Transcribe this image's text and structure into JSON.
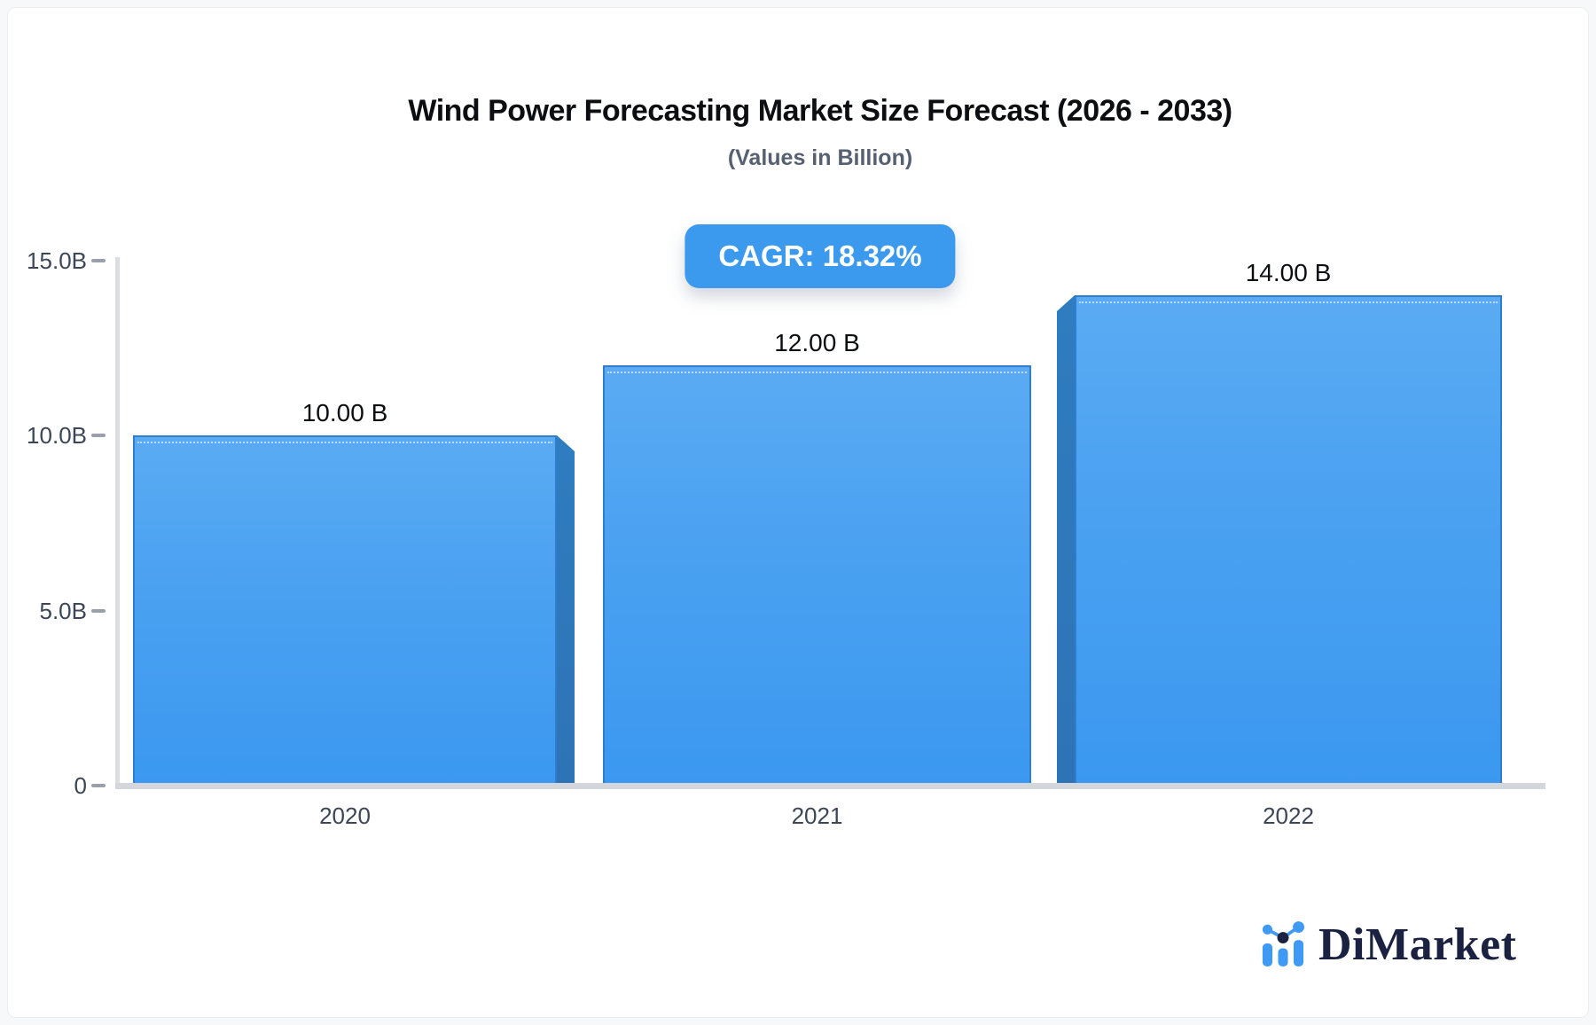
{
  "header": {
    "title": "Wind Power Forecasting Market Size Forecast (2026 - 2033)",
    "subtitle": "(Values in Billion)",
    "cagr_label": "CAGR: 18.32%"
  },
  "brand": {
    "name": "DiMarket",
    "icon": "bar-line-chart-icon"
  },
  "colors": {
    "accent_blue": "#3b99ee",
    "bar_gradient_top": "#5aabf3",
    "bar_gradient_bottom": "#3b98f0",
    "bar_border": "#2e7ecd",
    "bar_side_shadow": "#2d74b6",
    "axis_gray": "#d3d6db",
    "tick_text": "#3c4656",
    "title_text": "#0c0e12",
    "subtitle_text": "#566070",
    "logo_navy": "#1a2141",
    "logo_blue": "#3f9af5"
  },
  "chart_data": {
    "type": "bar",
    "title": "Wind Power Forecasting Market Size Forecast (2026 - 2033)",
    "subtitle": "(Values in Billion)",
    "unit": "Billion",
    "cagr": "18.32%",
    "categories": [
      "2020",
      "2021",
      "2022"
    ],
    "values": [
      10,
      12,
      14
    ],
    "value_labels": [
      "10.00 B",
      "12.00 B",
      "14.00 B"
    ],
    "y_ticks": [
      {
        "value": 15,
        "label": "15.0B"
      },
      {
        "value": 10,
        "label": "10.0B"
      },
      {
        "value": 5,
        "label": "5.0B"
      },
      {
        "value": 0,
        "label": "0"
      }
    ],
    "ylim": [
      0,
      15
    ],
    "grid": false,
    "legend": false,
    "bar_color": "#3b98f0"
  }
}
